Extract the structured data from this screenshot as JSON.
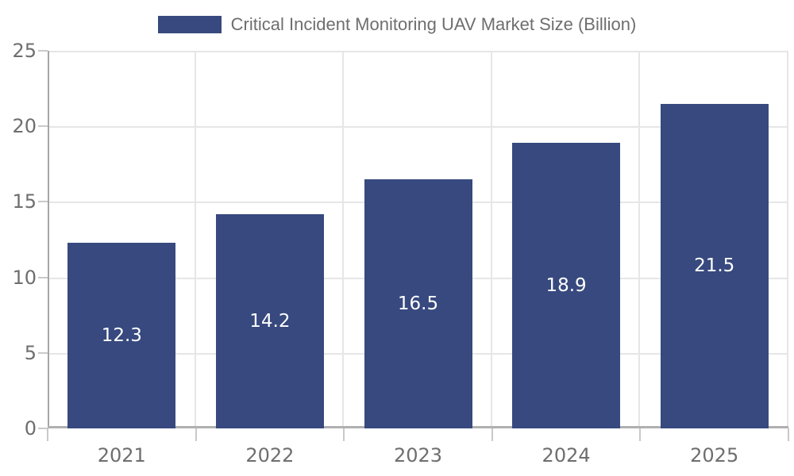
{
  "legend": {
    "swatch_color": "#37497E",
    "label": "Critical Incident Monitoring UAV Market Size (Billion)"
  },
  "chart_data": {
    "type": "bar",
    "title": "Critical Incident Monitoring UAV Market Size (Billion)",
    "categories": [
      "2021",
      "2022",
      "2023",
      "2024",
      "2025"
    ],
    "values": [
      12.3,
      14.2,
      16.5,
      18.9,
      21.5
    ],
    "value_labels": [
      "12.3",
      "14.2",
      "16.5",
      "18.9",
      "21.5"
    ],
    "xlabel": "",
    "ylabel": "",
    "ylim": [
      0,
      25
    ],
    "yticks": [
      0,
      5,
      10,
      15,
      20,
      25
    ],
    "grid": true,
    "legend_position": "top-center",
    "bar_color": "#37497E",
    "value_label_color": "#FFFFFF"
  },
  "colors": {
    "background": "#FFFFFF",
    "bar": "#37497E",
    "axis_line_left": "#A6A6A6",
    "axis_line_bottom": "#B0B0B0",
    "gridline": "#E6E6E6",
    "tick": "#C9C9C9",
    "tick_label": "#6E6E6E",
    "legend_text": "#6E6E6E"
  }
}
